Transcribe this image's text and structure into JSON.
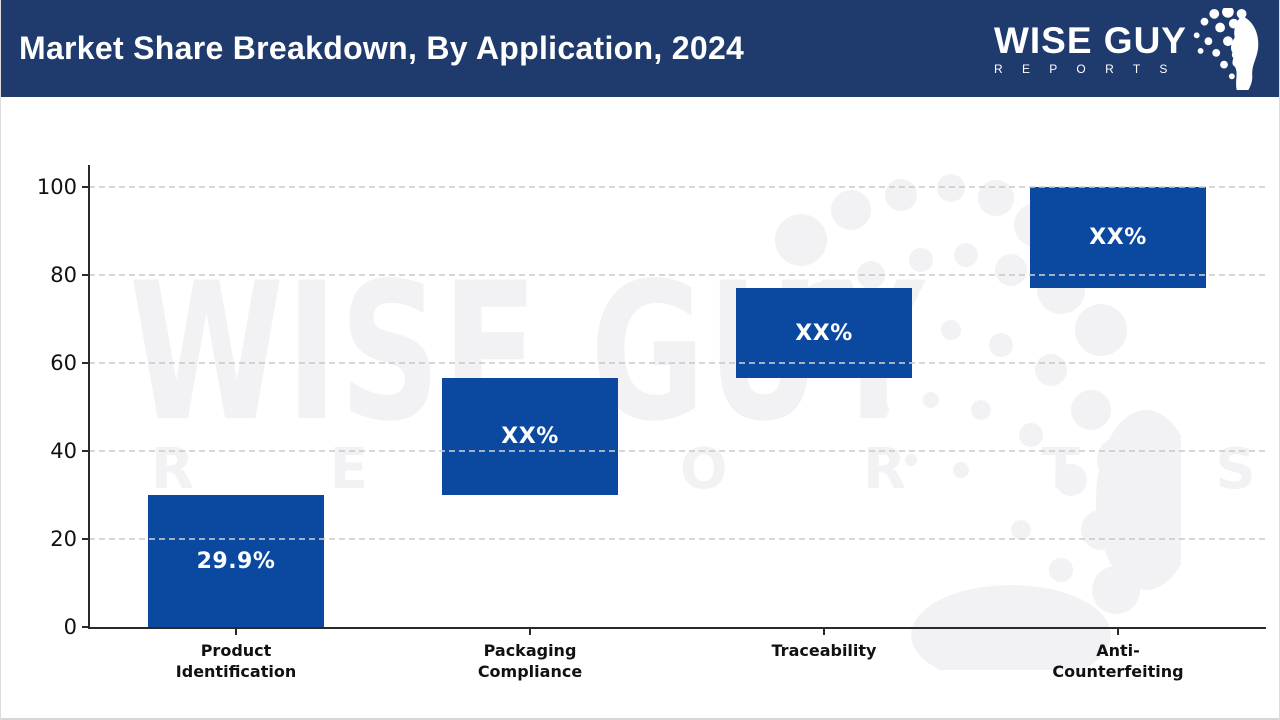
{
  "header": {
    "title": "Market Share Breakdown, By Application, 2024",
    "logo": {
      "line1": "WISE GUY",
      "line2": "R E P O R T S"
    }
  },
  "watermark": {
    "line1": "WISE GUY",
    "line2": "R E P O R T S"
  },
  "colors": {
    "header_bg": "#1f3a6d",
    "bar": "#0b48a0",
    "grid": "#cccccc",
    "axis": "#2a2a2a",
    "tick_label": "#111111",
    "bar_label": "#ffffff",
    "watermark": "#f2f2f4"
  },
  "chart_data": {
    "type": "bar",
    "subtype": "waterfall",
    "title": "Market Share Breakdown, By Application, 2024",
    "xlabel": "",
    "ylabel": "",
    "ylim": [
      0,
      105
    ],
    "yticks": [
      0,
      20,
      40,
      60,
      80,
      100
    ],
    "grid": "horizontal dashed, drawn over bars",
    "legend": "none",
    "categories": [
      {
        "name": "Product Identification",
        "lines": [
          "Product",
          "Identification"
        ],
        "start": 0,
        "end": 29.9,
        "label": "29.9%"
      },
      {
        "name": "Packaging Compliance",
        "lines": [
          "Packaging",
          "Compliance"
        ],
        "start": 29.9,
        "end": 56.6,
        "label": "XX%"
      },
      {
        "name": "Traceability",
        "lines": [
          "Traceability"
        ],
        "start": 56.6,
        "end": 77.0,
        "label": "XX%"
      },
      {
        "name": "Anti-Counterfeiting",
        "lines": [
          "Anti-",
          "Counterfeiting"
        ],
        "start": 77.0,
        "end": 100.0,
        "label": "XX%"
      }
    ]
  }
}
